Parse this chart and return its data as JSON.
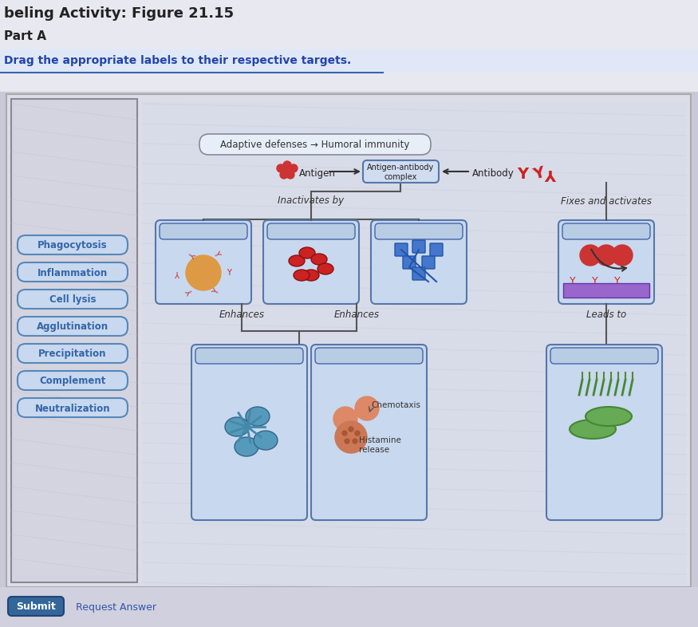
{
  "title": "beling Activity: Figure 21.15",
  "part": "Part A",
  "instruction": "Drag the appropriate labels to their respective targets.",
  "bg_color": "#e8e8f0",
  "panel_bg": "#dcdce8",
  "main_panel_bg": "#e0e4ee",
  "label_bg": "#c8d8ee",
  "label_border": "#5588bb",
  "label_text_color": "#3366aa",
  "box_bg": "#c8d8ee",
  "box_border": "#7799bb",
  "labels": [
    "Phagocytosis",
    "Inflammation",
    "Cell lysis",
    "Agglutination",
    "Precipitation",
    "Complement",
    "Neutralization"
  ],
  "header_text": "Adaptive defenses → Humoral immunity",
  "antigen_text": "Antigen",
  "antigen_antibody_text": "Antigen-antibody\ncomplex",
  "antibody_text": "Antibody",
  "inactivates_text": "Inactivates by",
  "fixes_text": "Fixes and activates",
  "enhances1_text": "Enhances",
  "enhances2_text": "Enhances",
  "leads_to_text": "Leads to",
  "chemotaxis_text": "Chemotaxis",
  "histamine_text": "Histamine\nrelease",
  "submit_bg": "#336699",
  "submit_text": "Submit",
  "request_text": "Request Answer"
}
